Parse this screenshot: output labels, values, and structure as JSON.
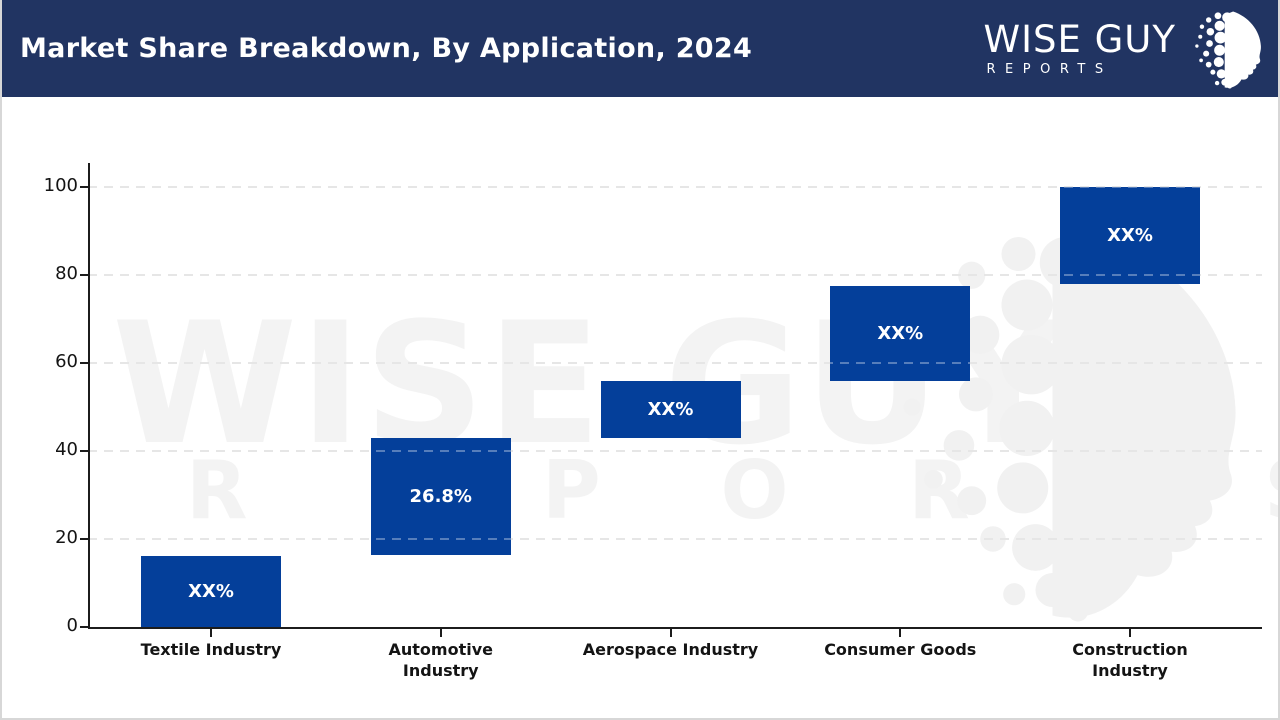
{
  "header": {
    "title": "Market Share Breakdown, By Application, 2024",
    "logo": {
      "line1": "WISE GUY",
      "line2": "REPORTS"
    }
  },
  "watermark": {
    "line1": "WISE GUY",
    "line2": "REPORTS"
  },
  "colors": {
    "header_bg": "#213462",
    "bar": "#043F9A",
    "bar_label": "#ffffff",
    "grid": "#d9d9d9",
    "axis": "#1c1c1c",
    "tick_text": "#141414",
    "watermark": "#f3f3f3"
  },
  "chart_data": {
    "type": "bar",
    "subtype": "waterfall-floating-bars",
    "title": "Market Share Breakdown, By Application, 2024",
    "xlabel": "",
    "ylabel": "",
    "ylim": [
      0,
      100
    ],
    "yticks": [
      0,
      20,
      40,
      60,
      80,
      100
    ],
    "grid": "horizontal-dashed",
    "legend": null,
    "categories": [
      "Textile Industry",
      "Automotive Industry",
      "Aerospace Industry",
      "Consumer Goods",
      "Construction Industry"
    ],
    "category_label_lines": [
      [
        "Textile Industry"
      ],
      [
        "Automotive",
        "Industry"
      ],
      [
        "Aerospace Industry"
      ],
      [
        "Consumer Goods"
      ],
      [
        "Construction",
        "Industry"
      ]
    ],
    "bars": [
      {
        "category": "Textile Industry",
        "start": 0,
        "end": 16.1,
        "label": "XX%"
      },
      {
        "category": "Automotive Industry",
        "start": 16.3,
        "end": 43.0,
        "label": "26.8%"
      },
      {
        "category": "Aerospace Industry",
        "start": 43.0,
        "end": 56.0,
        "label": "XX%"
      },
      {
        "category": "Consumer Goods",
        "start": 56.0,
        "end": 77.4,
        "label": "XX%"
      },
      {
        "category": "Construction Industry",
        "start": 77.9,
        "end": 100,
        "label": "XX%"
      }
    ]
  }
}
